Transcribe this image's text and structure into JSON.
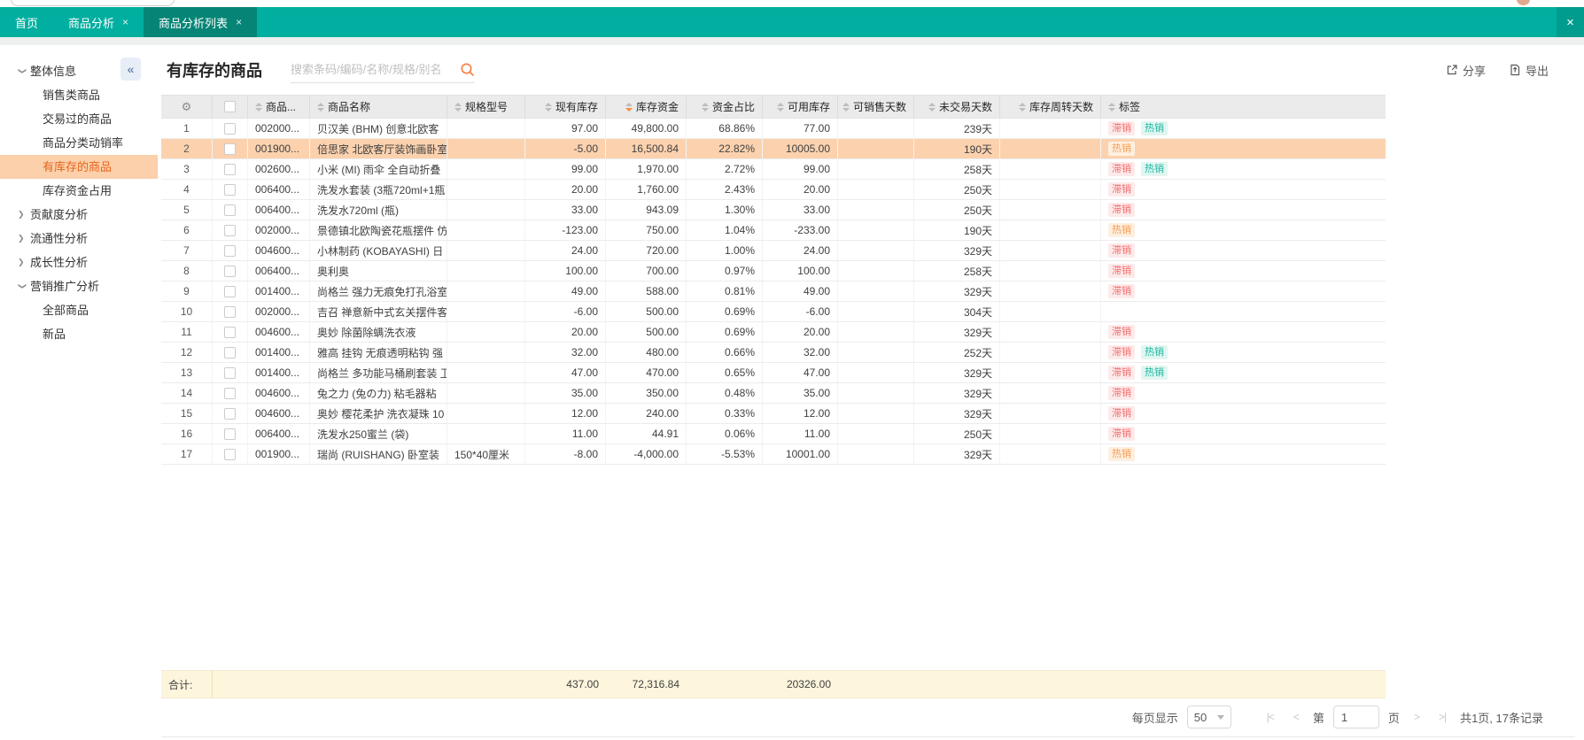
{
  "topbar": {
    "tabs": [
      {
        "label": "首页",
        "closable": false,
        "active": false
      },
      {
        "label": "商品分析",
        "closable": true,
        "active": false
      },
      {
        "label": "商品分析列表",
        "closable": true,
        "active": true
      }
    ],
    "tab_close_glyph": "×",
    "window_close_glyph": "×"
  },
  "sidebar": {
    "collapse_glyph": "«",
    "items": [
      {
        "label": "整体信息",
        "level": 0,
        "expanded": true
      },
      {
        "label": "销售类商品",
        "level": 1
      },
      {
        "label": "交易过的商品",
        "level": 1
      },
      {
        "label": "商品分类动销率",
        "level": 1
      },
      {
        "label": "有库存的商品",
        "level": 1,
        "active": true
      },
      {
        "label": "库存资金占用",
        "level": 1
      },
      {
        "label": "贡献度分析",
        "level": 0,
        "expanded": false
      },
      {
        "label": "流通性分析",
        "level": 0,
        "expanded": false
      },
      {
        "label": "成长性分析",
        "level": 0,
        "expanded": false
      },
      {
        "label": "营销推广分析",
        "level": 0,
        "expanded": true
      },
      {
        "label": "全部商品",
        "level": 1
      },
      {
        "label": "新品",
        "level": 1
      }
    ]
  },
  "header": {
    "title": "有库存的商品",
    "search_placeholder": "搜索条码/编码/名称/规格/别名",
    "share_label": "分享",
    "export_label": "导出"
  },
  "table": {
    "columns": [
      {
        "key": "settings",
        "label": "",
        "type": "gear"
      },
      {
        "key": "checkbox",
        "label": "",
        "type": "checkbox"
      },
      {
        "key": "code",
        "label": "商品...",
        "sortable": true
      },
      {
        "key": "name",
        "label": "商品名称",
        "sortable": true
      },
      {
        "key": "spec",
        "label": "规格型号",
        "sortable": true
      },
      {
        "key": "on_hand",
        "label": "现有库存",
        "sortable": true,
        "align": "right"
      },
      {
        "key": "stock_value",
        "label": "库存资金",
        "sortable": true,
        "align": "right",
        "sorted": "desc"
      },
      {
        "key": "ratio",
        "label": "资金占比",
        "sortable": true,
        "align": "right"
      },
      {
        "key": "available",
        "label": "可用库存",
        "sortable": true,
        "align": "right"
      },
      {
        "key": "sell_days",
        "label": "可销售天数",
        "sortable": true,
        "align": "right"
      },
      {
        "key": "no_trade_days",
        "label": "未交易天数",
        "sortable": true,
        "align": "right"
      },
      {
        "key": "turnover_days",
        "label": "库存周转天数",
        "sortable": true,
        "align": "right"
      },
      {
        "key": "tags",
        "label": "标签",
        "sortable": true
      }
    ],
    "rows": [
      {
        "index": "1",
        "code": "002000...",
        "name": "贝汉美 (BHM) 创意北欧客",
        "spec": "",
        "on_hand": "97.00",
        "stock_value": "49,800.00",
        "ratio": "68.86%",
        "available": "77.00",
        "sell_days": "",
        "no_trade_days": "239天",
        "turnover_days": "",
        "tags": [
          {
            "label": "滞销",
            "type": "red"
          },
          {
            "label": "热销",
            "type": "teal"
          }
        ],
        "highlight": false
      },
      {
        "index": "2",
        "code": "001900...",
        "name": "倍思家 北欧客厅装饰画卧室",
        "spec": "",
        "on_hand": "-5.00",
        "stock_value": "16,500.84",
        "ratio": "22.82%",
        "available": "10005.00",
        "sell_days": "",
        "no_trade_days": "190天",
        "turnover_days": "",
        "tags": [
          {
            "label": "热销",
            "type": "orange"
          }
        ],
        "highlight": true
      },
      {
        "index": "3",
        "code": "002600...",
        "name": "小米 (MI) 雨伞 全自动折叠",
        "spec": "",
        "on_hand": "99.00",
        "stock_value": "1,970.00",
        "ratio": "2.72%",
        "available": "99.00",
        "sell_days": "",
        "no_trade_days": "258天",
        "turnover_days": "",
        "tags": [
          {
            "label": "滞销",
            "type": "red"
          },
          {
            "label": "热销",
            "type": "teal"
          }
        ],
        "highlight": false
      },
      {
        "index": "4",
        "code": "006400...",
        "name": "洗发水套装 (3瓶720ml+1瓶",
        "spec": "",
        "on_hand": "20.00",
        "stock_value": "1,760.00",
        "ratio": "2.43%",
        "available": "20.00",
        "sell_days": "",
        "no_trade_days": "250天",
        "turnover_days": "",
        "tags": [
          {
            "label": "滞销",
            "type": "red"
          }
        ],
        "highlight": false
      },
      {
        "index": "5",
        "code": "006400...",
        "name": "洗发水720ml (瓶)",
        "spec": "",
        "on_hand": "33.00",
        "stock_value": "943.09",
        "ratio": "1.30%",
        "available": "33.00",
        "sell_days": "",
        "no_trade_days": "250天",
        "turnover_days": "",
        "tags": [
          {
            "label": "滞销",
            "type": "red"
          }
        ],
        "highlight": false
      },
      {
        "index": "6",
        "code": "002000...",
        "name": "景德镇北欧陶瓷花瓶摆件 仿",
        "spec": "",
        "on_hand": "-123.00",
        "stock_value": "750.00",
        "ratio": "1.04%",
        "available": "-233.00",
        "sell_days": "",
        "no_trade_days": "190天",
        "turnover_days": "",
        "tags": [
          {
            "label": "热销",
            "type": "orange"
          }
        ],
        "highlight": false
      },
      {
        "index": "7",
        "code": "004600...",
        "name": "小林制药 (KOBAYASHI) 日",
        "spec": "",
        "on_hand": "24.00",
        "stock_value": "720.00",
        "ratio": "1.00%",
        "available": "24.00",
        "sell_days": "",
        "no_trade_days": "329天",
        "turnover_days": "",
        "tags": [
          {
            "label": "滞销",
            "type": "red"
          }
        ],
        "highlight": false
      },
      {
        "index": "8",
        "code": "006400...",
        "name": "奥利奥",
        "spec": "",
        "on_hand": "100.00",
        "stock_value": "700.00",
        "ratio": "0.97%",
        "available": "100.00",
        "sell_days": "",
        "no_trade_days": "258天",
        "turnover_days": "",
        "tags": [
          {
            "label": "滞销",
            "type": "red"
          }
        ],
        "highlight": false
      },
      {
        "index": "9",
        "code": "001400...",
        "name": "尚格兰 强力无痕免打孔浴室",
        "spec": "",
        "on_hand": "49.00",
        "stock_value": "588.00",
        "ratio": "0.81%",
        "available": "49.00",
        "sell_days": "",
        "no_trade_days": "329天",
        "turnover_days": "",
        "tags": [
          {
            "label": "滞销",
            "type": "red"
          }
        ],
        "highlight": false
      },
      {
        "index": "10",
        "code": "002000...",
        "name": "吉召 禅意新中式玄关摆件客",
        "spec": "",
        "on_hand": "-6.00",
        "stock_value": "500.00",
        "ratio": "0.69%",
        "available": "-6.00",
        "sell_days": "",
        "no_trade_days": "304天",
        "turnover_days": "",
        "tags": [],
        "highlight": false
      },
      {
        "index": "11",
        "code": "004600...",
        "name": "奥妙 除菌除螨洗衣液",
        "spec": "",
        "on_hand": "20.00",
        "stock_value": "500.00",
        "ratio": "0.69%",
        "available": "20.00",
        "sell_days": "",
        "no_trade_days": "329天",
        "turnover_days": "",
        "tags": [
          {
            "label": "滞销",
            "type": "red"
          }
        ],
        "highlight": false
      },
      {
        "index": "12",
        "code": "001400...",
        "name": "雅高 挂钩 无痕透明粘钩 强",
        "spec": "",
        "on_hand": "32.00",
        "stock_value": "480.00",
        "ratio": "0.66%",
        "available": "32.00",
        "sell_days": "",
        "no_trade_days": "252天",
        "turnover_days": "",
        "tags": [
          {
            "label": "滞销",
            "type": "red"
          },
          {
            "label": "热销",
            "type": "teal"
          }
        ],
        "highlight": false
      },
      {
        "index": "13",
        "code": "001400...",
        "name": "尚格兰 多功能马桶刷套装 卫",
        "spec": "",
        "on_hand": "47.00",
        "stock_value": "470.00",
        "ratio": "0.65%",
        "available": "47.00",
        "sell_days": "",
        "no_trade_days": "329天",
        "turnover_days": "",
        "tags": [
          {
            "label": "滞销",
            "type": "red"
          },
          {
            "label": "热销",
            "type": "teal"
          }
        ],
        "highlight": false
      },
      {
        "index": "14",
        "code": "004600...",
        "name": "兔之力 (兔の力) 粘毛器粘",
        "spec": "",
        "on_hand": "35.00",
        "stock_value": "350.00",
        "ratio": "0.48%",
        "available": "35.00",
        "sell_days": "",
        "no_trade_days": "329天",
        "turnover_days": "",
        "tags": [
          {
            "label": "滞销",
            "type": "red"
          }
        ],
        "highlight": false
      },
      {
        "index": "15",
        "code": "004600...",
        "name": "奥妙 樱花柔护 洗衣凝珠 10",
        "spec": "",
        "on_hand": "12.00",
        "stock_value": "240.00",
        "ratio": "0.33%",
        "available": "12.00",
        "sell_days": "",
        "no_trade_days": "329天",
        "turnover_days": "",
        "tags": [
          {
            "label": "滞销",
            "type": "red"
          }
        ],
        "highlight": false
      },
      {
        "index": "16",
        "code": "006400...",
        "name": "洗发水250蜜兰 (袋)",
        "spec": "",
        "on_hand": "11.00",
        "stock_value": "44.91",
        "ratio": "0.06%",
        "available": "11.00",
        "sell_days": "",
        "no_trade_days": "250天",
        "turnover_days": "",
        "tags": [
          {
            "label": "滞销",
            "type": "red"
          }
        ],
        "highlight": false
      },
      {
        "index": "17",
        "code": "001900...",
        "name": "瑞尚 (RUISHANG) 卧室装",
        "spec": "150*40厘米",
        "on_hand": "-8.00",
        "stock_value": "-4,000.00",
        "ratio": "-5.53%",
        "available": "10001.00",
        "sell_days": "",
        "no_trade_days": "329天",
        "turnover_days": "",
        "tags": [
          {
            "label": "热销",
            "type": "orange"
          }
        ],
        "highlight": false
      }
    ],
    "summary": {
      "label": "合计:",
      "on_hand": "437.00",
      "stock_value": "72,316.84",
      "available": "20326.00"
    }
  },
  "pagination": {
    "per_page_label": "每页显示",
    "per_page_value": "50",
    "first_glyph": "|<",
    "prev_glyph": "<",
    "page_prefix": "第",
    "page_value": "1",
    "page_suffix": "页",
    "next_glyph": ">",
    "last_glyph": ">|",
    "total_text": "共1页, 17条记录"
  },
  "colors": {
    "topbar": "#00af9f",
    "active_tab": "#068576",
    "accent_orange": "#fa8c3c",
    "active_item_bg": "#fbd0ab",
    "active_item_text": "#e8641c",
    "highlight_row_bg": "#fcd2ae",
    "summary_bg": "#fdf5dc",
    "badge_red": "#f56c6c",
    "badge_teal": "#1db7a1",
    "badge_orange": "#fa9b50"
  }
}
